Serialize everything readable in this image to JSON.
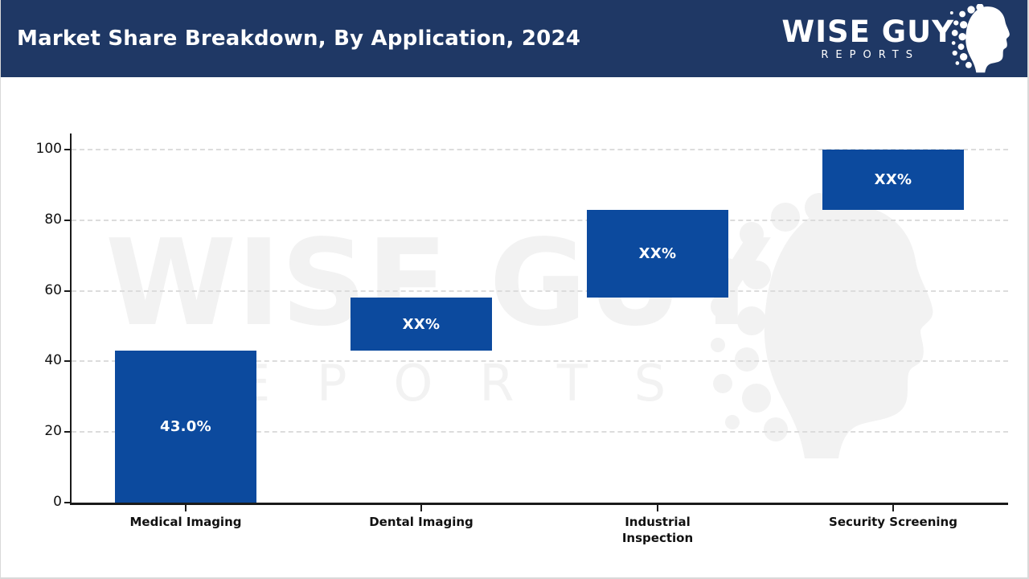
{
  "header": {
    "title": "Market Share Breakdown, By Application, 2024",
    "logo": {
      "line1": "WISE GUY",
      "line2": "REPORTS"
    }
  },
  "watermark": {
    "line1": "WISE GUY",
    "line2": "REPORTS"
  },
  "chart_data": {
    "type": "bar",
    "subtype": "waterfall",
    "title": "Market Share Breakdown, By Application, 2024",
    "categories": [
      "Medical Imaging",
      "Dental Imaging",
      "Industrial\nInspection",
      "Security Screening"
    ],
    "segments": [
      {
        "category": "Medical Imaging",
        "start": 0,
        "end": 43,
        "value_label": "43.0%"
      },
      {
        "category": "Dental Imaging",
        "start": 43,
        "end": 58,
        "value_label": "XX%"
      },
      {
        "category": "Industrial Inspection",
        "start": 58,
        "end": 83,
        "value_label": "XX%"
      },
      {
        "category": "Security Screening",
        "start": 83,
        "end": 100,
        "value_label": "XX%"
      }
    ],
    "xlabel": "",
    "ylabel": "",
    "ylim": [
      0,
      100
    ],
    "yticks": [
      0,
      20,
      40,
      60,
      80,
      100
    ],
    "grid": {
      "axis": "y",
      "style": "dashed",
      "color": "#dcdcdc"
    },
    "legend": null,
    "bar_color": "#0c4a9e",
    "value_label_color": "#ffffff",
    "header_color": "#1f3865"
  }
}
